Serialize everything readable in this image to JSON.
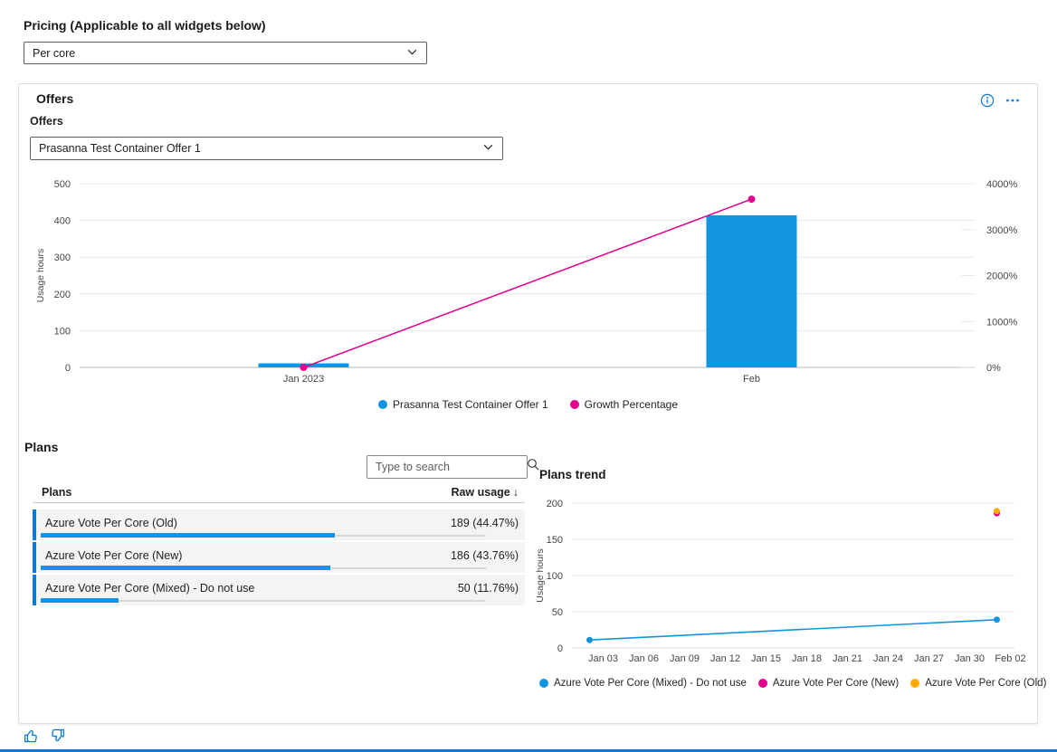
{
  "pricing": {
    "label": "Pricing (Applicable to all widgets below)",
    "value": "Per core"
  },
  "card": {
    "title": "Offers",
    "offers_label": "Offers",
    "offers_value": "Prasanna Test Container Offer 1"
  },
  "icons": {
    "info": "info-circle",
    "more": "ellipsis",
    "chevron": "chevron-down",
    "search": "magnifier",
    "thumbs_up": "thumbs-up-outline",
    "thumbs_down": "thumbs-down-outline"
  },
  "colors": {
    "blue": "#1195e0",
    "magenta": "#e3008c",
    "orange": "#ffaa00",
    "accent_blue": "#1178d4",
    "icon_blue": "#0c77d4",
    "grid": "#e8e8e8",
    "baseline": "#d2d0ce",
    "axis_text": "#484644"
  },
  "chart_data": [
    {
      "type": "bar",
      "name": "offer-usage-combo-chart",
      "categories": [
        "Jan 2023",
        "Feb"
      ],
      "series": [
        {
          "name": "Prasanna Test Container Offer 1",
          "kind": "bar",
          "axis": "left",
          "color": "#1195e0",
          "values": [
            11,
            414
          ]
        },
        {
          "name": "Growth Percentage",
          "kind": "line",
          "axis": "right",
          "color": "#e3008c",
          "values": [
            0,
            3663
          ]
        }
      ],
      "ylabel": "Usage hours",
      "y_left": {
        "min": 0,
        "max": 500,
        "step": 100,
        "suffix": ""
      },
      "y_right": {
        "min": 0,
        "max": 4000,
        "step": 1000,
        "suffix": "%"
      },
      "grid": true,
      "legend_position": "bottom-center",
      "legend": [
        {
          "name": "Prasanna Test Container Offer 1",
          "color": "#1195e0"
        },
        {
          "name": "Growth Percentage",
          "color": "#e3008c"
        }
      ]
    },
    {
      "type": "line",
      "name": "plans-trend-chart",
      "title": "Plans trend",
      "ylabel": "Usage hours",
      "ylim": [
        0,
        200
      ],
      "y_step": 50,
      "x_ticks": [
        "Jan 03",
        "Jan 06",
        "Jan 09",
        "Jan 12",
        "Jan 15",
        "Jan 18",
        "Jan 21",
        "Jan 24",
        "Jan 27",
        "Jan 30",
        "Feb 02"
      ],
      "x_tick_days": [
        3,
        6,
        9,
        12,
        15,
        18,
        21,
        24,
        27,
        30,
        33
      ],
      "x_domain_days": [
        0.7,
        33.3
      ],
      "grid": true,
      "series": [
        {
          "name": "Azure Vote Per Core (Mixed) - Do not use",
          "color": "#1195e0",
          "points": [
            {
              "day": 2,
              "value": 11
            },
            {
              "day": 32,
              "value": 39
            }
          ]
        },
        {
          "name": "Azure Vote Per Core (New)",
          "color": "#e3008c",
          "points": [
            {
              "day": 32,
              "value": 186
            }
          ]
        },
        {
          "name": "Azure Vote Per Core (Old)",
          "color": "#ffaa00",
          "points": [
            {
              "day": 32,
              "value": 189
            }
          ]
        }
      ],
      "legend_position": "bottom-left",
      "legend": [
        {
          "name": "Azure Vote Per Core (Mixed) - Do not use",
          "color": "#1195e0"
        },
        {
          "name": "Azure Vote Per Core (New)",
          "color": "#e3008c"
        },
        {
          "name": "Azure Vote Per Core (Old)",
          "color": "#ffaa00"
        }
      ]
    }
  ],
  "plans": {
    "title": "Plans",
    "search_placeholder": "Type to search",
    "columns": [
      "Plans",
      "Raw usage"
    ],
    "sort_arrow": "↓",
    "rows": [
      {
        "name": "Azure Vote Per Core (Old)",
        "value": "189 (44.47%)",
        "raw": 189
      },
      {
        "name": "Azure Vote Per Core (New)",
        "value": "186 (43.76%)",
        "raw": 186
      },
      {
        "name": "Azure Vote Per Core (Mixed) - Do not use",
        "value": "50 (11.76%)",
        "raw": 50
      }
    ]
  },
  "trend": {
    "title": "Plans trend"
  }
}
